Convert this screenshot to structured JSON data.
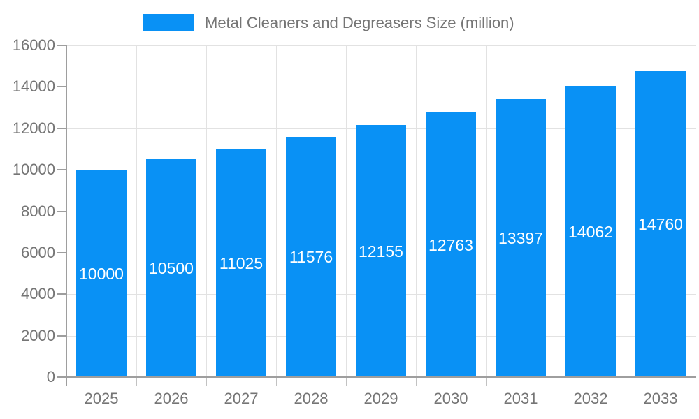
{
  "legend": {
    "label": "Metal Cleaners and Degreasers Size (million)"
  },
  "colors": {
    "bar": "#0991f5",
    "bar_label": "#ffffff",
    "axis": "#9e9e9e",
    "grid": "#e2e2e2",
    "xtick": "#c2c2c2",
    "text": "#757575",
    "background": "#ffffff"
  },
  "chart_data": {
    "type": "bar",
    "title": "",
    "categories": [
      "2025",
      "2026",
      "2027",
      "2028",
      "2029",
      "2030",
      "2031",
      "2032",
      "2033"
    ],
    "series": [
      {
        "name": "Metal Cleaners and Degreasers Size (million)",
        "values": [
          10000,
          10500,
          11025,
          11576,
          12155,
          12763,
          13397,
          14062,
          14760
        ]
      }
    ],
    "values": [
      10000,
      10500,
      11025,
      11576,
      12155,
      12763,
      13397,
      14062,
      14760
    ],
    "bar_value_labels": [
      "10000",
      "10500",
      "11025",
      "11576",
      "12155",
      "12763",
      "13397",
      "14062",
      "14760"
    ],
    "xlabel": "",
    "ylabel": "",
    "ylim": [
      0,
      16000
    ],
    "ytick_step": 2000,
    "ytick_labels": [
      "0",
      "2000",
      "4000",
      "6000",
      "8000",
      "10000",
      "12000",
      "14000",
      "16000"
    ],
    "grid": true,
    "legend_position": "top-center"
  }
}
